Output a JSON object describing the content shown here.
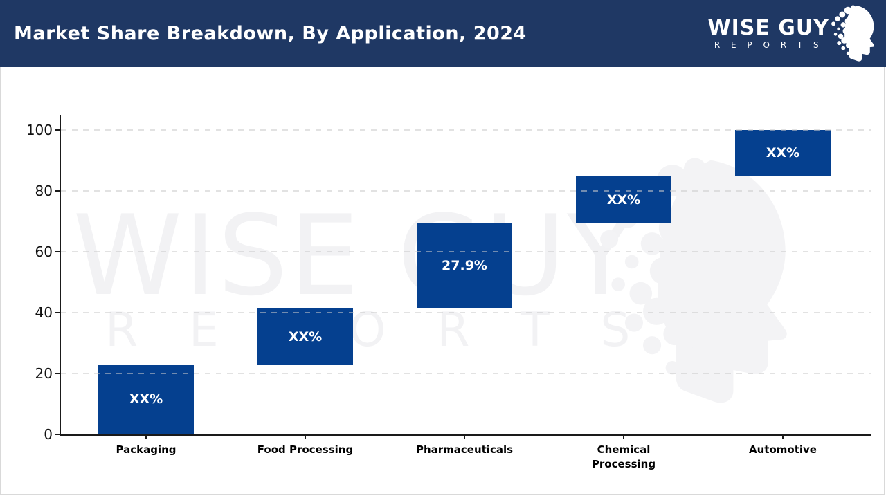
{
  "header": {
    "title": "Market Share Breakdown, By Application, 2024",
    "logo_line1": "WISE GUY",
    "logo_line2": "R E P O R T S"
  },
  "watermark": {
    "line1": "WISE GUY",
    "line2": "R E P O R T S"
  },
  "colors": {
    "header_bg": "#1f3864",
    "bar": "#05408f",
    "bar_label": "#ffffff",
    "watermark": "#f2f2f4",
    "grid": "#e3e3e3",
    "axis": "#1a1a1a"
  },
  "chart_data": {
    "type": "bar",
    "subtype": "waterfall",
    "title": "Market Share Breakdown, By Application, 2024",
    "xlabel": "",
    "ylabel": "",
    "unit": "%",
    "ylim": [
      0,
      105
    ],
    "yticks": [
      0,
      20,
      40,
      60,
      80,
      100
    ],
    "grid": "horizontal-dashed",
    "legend": "none",
    "bar_color": "#05408f",
    "categories": [
      "Packaging",
      "Food Processing",
      "Pharmaceuticals",
      "Chemical Processing",
      "Automotive"
    ],
    "segments": [
      {
        "category": "Packaging",
        "start": 0,
        "end": 23,
        "label": "XX%"
      },
      {
        "category": "Food Processing",
        "start": 22.8,
        "end": 41.5,
        "label": "XX%"
      },
      {
        "category": "Pharmaceuticals",
        "start": 41.5,
        "end": 69.4,
        "label": "27.9%",
        "value": 27.9
      },
      {
        "category": "Chemical Processing",
        "start": 69.6,
        "end": 84.7,
        "label": "XX%"
      },
      {
        "category": "Automotive",
        "start": 84.9,
        "end": 100.1,
        "label": "XX%"
      }
    ]
  }
}
